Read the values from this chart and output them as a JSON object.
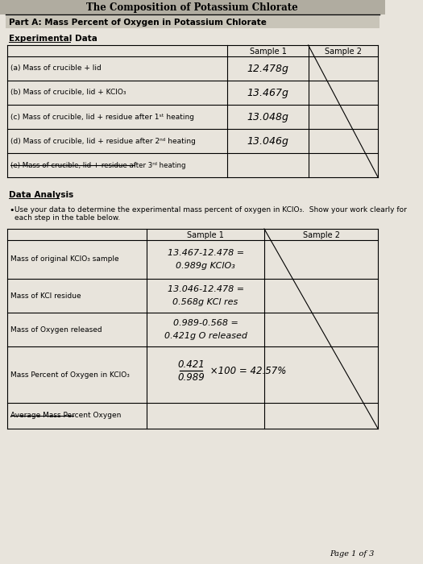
{
  "title": "The Composition of Potassium Chlorate",
  "part_a_title": "Part A: Mass Percent of Oxygen in Potassium Chlorate",
  "exp_data_title": "Experimental Data",
  "data_analysis_title": "Data Analysis",
  "bullet_text": "Use your data to determine the experimental mass percent of oxygen in KClO₃.  Show your work clearly for\neach step in the table below.",
  "page_label": "Page 1 of 3",
  "bg_color": "#e8e4dc",
  "paper_color": "#f5f3ee",
  "header_bg": "#c8c4b8",
  "table1_headers": [
    "",
    "Sample 1",
    "Sample 2"
  ],
  "table1_rows": [
    [
      "(a) Mass of crucible + lid",
      "12.478g",
      ""
    ],
    [
      "(b) Mass of crucible, lid + KClO₃",
      "13.467g",
      ""
    ],
    [
      "(c) Mass of crucible, lid + residue after 1ˢᵗ heating",
      "13.048g",
      ""
    ],
    [
      "(d) Mass of crucible, lid + residue after 2ⁿᵈ heating",
      "13.046g",
      ""
    ],
    [
      "(e) Mass of crucible, lid + residue after 3ʳᵈ heating",
      "",
      ""
    ]
  ],
  "table1_row4_strikethrough": true,
  "table2_headers": [
    "",
    "Sample 1",
    "Sample 2"
  ],
  "table2_rows": [
    [
      "Mass of original KClO₃ sample",
      "13.467-12.478 =\n0.989g KClO₃",
      ""
    ],
    [
      "Mass of KCl residue",
      "13.046-12.478 =\n0.568g KCl res",
      ""
    ],
    [
      "Mass of Oxygen released",
      "0.989-0.568 =\n0.421g O released",
      ""
    ],
    [
      "Mass Percent of Oxygen in KClO₃",
      "fraction_row",
      ""
    ],
    [
      "Average Mass Percent Oxygen",
      "",
      ""
    ]
  ],
  "table2_row4_strikethrough": true,
  "fraction_numerator": "0.421",
  "fraction_denominator": "0.989",
  "fraction_rest": " ×100 = 42.57%"
}
